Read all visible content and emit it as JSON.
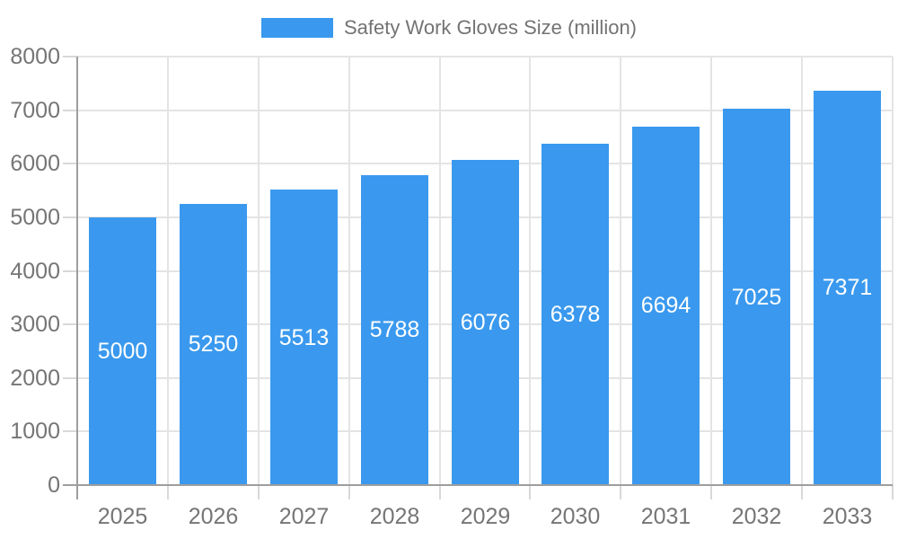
{
  "chart_data": {
    "type": "bar",
    "title": "Safety Work Gloves Size (million)",
    "legend": {
      "label": "Safety Work Gloves Size (million)",
      "position": "top"
    },
    "categories": [
      "2025",
      "2026",
      "2027",
      "2028",
      "2029",
      "2030",
      "2031",
      "2032",
      "2033"
    ],
    "series": [
      {
        "name": "Safety Work Gloves Size (million)",
        "values": [
          5000,
          5250,
          5513,
          5788,
          6076,
          6378,
          6694,
          7025,
          7371
        ]
      }
    ],
    "value_labels_shown": true,
    "ylim": [
      0,
      8000
    ],
    "ytick_step": 1000,
    "yticks": [
      0,
      1000,
      2000,
      3000,
      4000,
      5000,
      6000,
      7000,
      8000
    ],
    "grid": true,
    "colors": {
      "bar": "#3A99EE",
      "value_label": "#FFFFFF",
      "axis_text": "#757575",
      "legend_text": "#737373",
      "gridline": "#E4E4E4",
      "tick": "#D8D8D8",
      "axis_line": "#9E9E9E",
      "background": "#FFFFFF"
    }
  }
}
